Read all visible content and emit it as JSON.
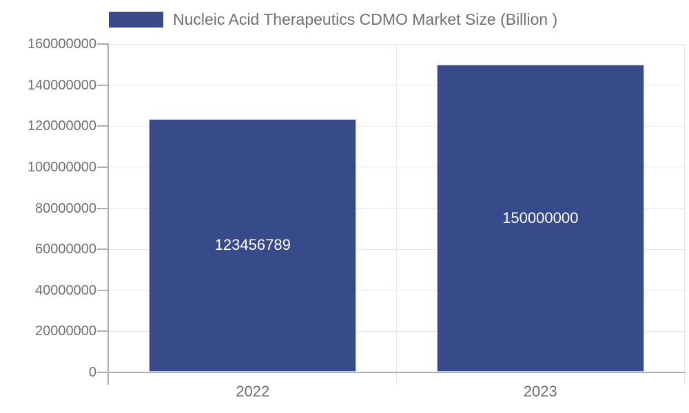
{
  "chart_data": {
    "type": "bar",
    "title": "Nucleic Acid Therapeutics CDMO Market Size (Billion )",
    "categories": [
      "2022",
      "2023"
    ],
    "values": [
      123456789,
      150000000
    ],
    "bar_value_labels": [
      "123456789",
      "150000000"
    ],
    "xlabel": "",
    "ylabel": "",
    "ylim": [
      0,
      160000000
    ],
    "yticks": [
      0,
      20000000,
      40000000,
      60000000,
      80000000,
      100000000,
      120000000,
      140000000,
      160000000
    ],
    "ytick_labels": [
      "0",
      "20000000",
      "40000000",
      "60000000",
      "80000000",
      "100000000",
      "120000000",
      "140000000",
      "160000000"
    ],
    "grid": true,
    "legend_position": "top"
  },
  "colors": {
    "bar_fill": "#374A89",
    "bar_border": "#CDD3E4",
    "bar_label_text": "#FFFFFF",
    "axis_label_text": "#707070",
    "legend_text": "#707070",
    "axis_line": "#AFAFAF",
    "gridline": "#E8E8E8",
    "background": "#FFFFFF"
  }
}
